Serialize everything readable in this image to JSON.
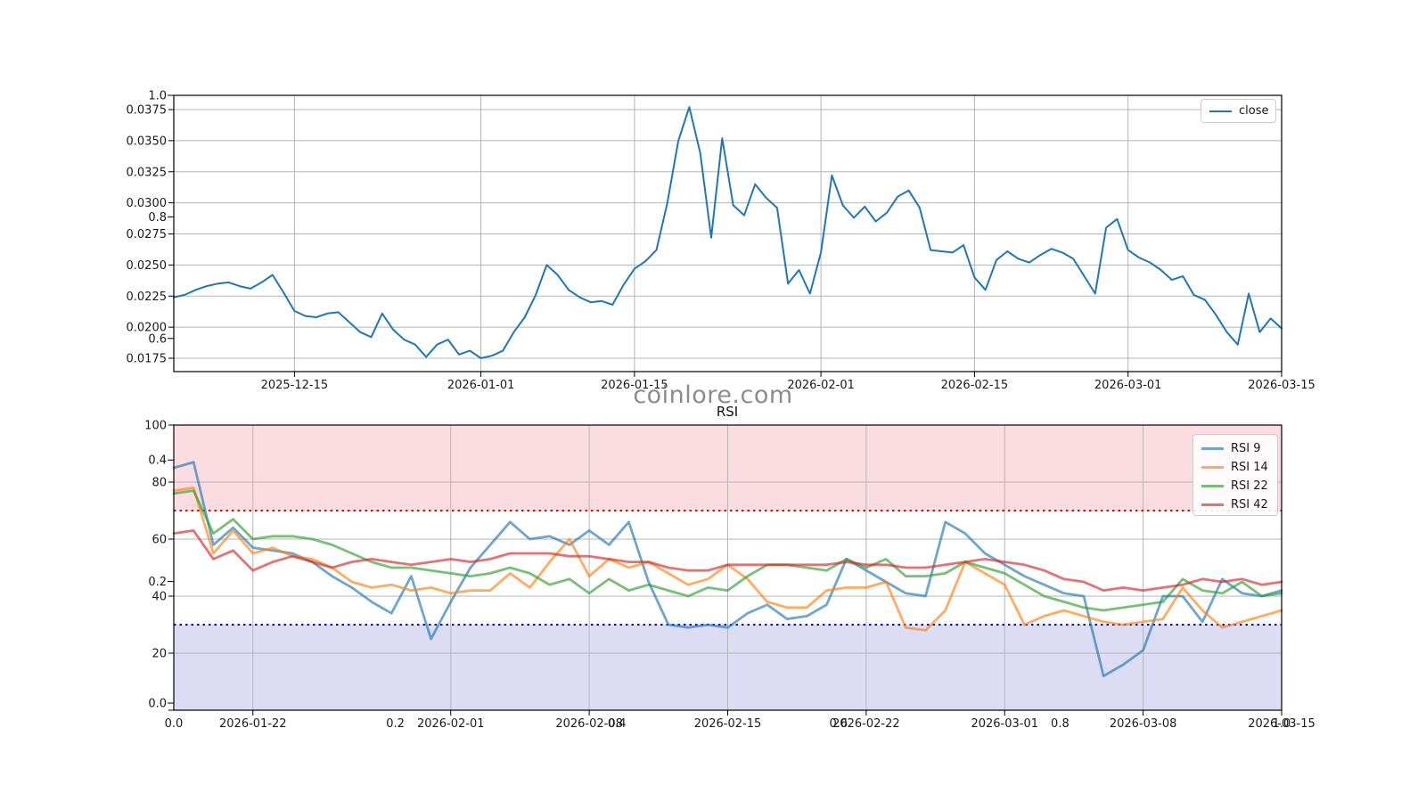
{
  "watermark": {
    "text": "coinlore.com"
  },
  "figure_axis": {
    "x_tick_labels": [
      "0.0",
      "0.2",
      "0.4",
      "0.6",
      "0.8",
      "1.0"
    ],
    "y_tick_labels": [
      "1.0",
      "0.8",
      "0.6",
      "0.4",
      "0.2",
      "0.0"
    ]
  },
  "colors": {
    "close_line": "#1f77b4",
    "rsi9": "rgba(31,119,180,0.65)",
    "rsi14": "rgba(255,127,14,0.65)",
    "rsi22": "rgba(44,160,44,0.65)",
    "rsi42": "rgba(214,39,40,0.65)",
    "overbought_band": "#fbdce1",
    "oversold_band": "#dcdcf5",
    "overbought_line": "#ee0000",
    "oversold_line": "#0000dd",
    "grid": "#b5b5b5",
    "spine": "#000000",
    "watermark": "#8c8c8c"
  },
  "chart_data": [
    {
      "type": "line",
      "name": "price",
      "title": "",
      "legend_entries": [
        "close"
      ],
      "x_start": "2025-12-04",
      "x_step_days": 1,
      "x_ticks": [
        {
          "label": "2025-12-15",
          "index": 11
        },
        {
          "label": "2026-01-01",
          "index": 28
        },
        {
          "label": "2026-01-15",
          "index": 42
        },
        {
          "label": "2026-02-01",
          "index": 59
        },
        {
          "label": "2026-02-15",
          "index": 73
        },
        {
          "label": "2026-03-01",
          "index": 87
        },
        {
          "label": "2026-03-15",
          "index": 101
        }
      ],
      "y_ticks": [
        0.0175,
        0.02,
        0.0225,
        0.025,
        0.0275,
        0.03,
        0.0325,
        0.035,
        0.0375
      ],
      "ylim": [
        0.01643,
        0.03865
      ],
      "grid": true,
      "legend_position": "upper right",
      "series": [
        {
          "name": "close",
          "color": "#1f77b4",
          "values": [
            0.0224,
            0.0226,
            0.023,
            0.0233,
            0.0235,
            0.0236,
            0.0233,
            0.0231,
            0.0236,
            0.0242,
            0.0228,
            0.0213,
            0.0209,
            0.0208,
            0.0211,
            0.0212,
            0.0204,
            0.0196,
            0.0192,
            0.0211,
            0.0198,
            0.019,
            0.0186,
            0.0176,
            0.0186,
            0.019,
            0.0178,
            0.0181,
            0.0175,
            0.0177,
            0.0181,
            0.0196,
            0.0208,
            0.0226,
            0.025,
            0.0242,
            0.023,
            0.0224,
            0.022,
            0.0221,
            0.0218,
            0.0234,
            0.0247,
            0.0253,
            0.0262,
            0.03,
            0.035,
            0.0377,
            0.034,
            0.0272,
            0.0352,
            0.0298,
            0.029,
            0.0315,
            0.0304,
            0.0296,
            0.0235,
            0.0246,
            0.0227,
            0.026,
            0.0322,
            0.0298,
            0.0288,
            0.0297,
            0.0285,
            0.0292,
            0.0305,
            0.031,
            0.0296,
            0.0262,
            0.0261,
            0.026,
            0.0266,
            0.024,
            0.023,
            0.0254,
            0.0261,
            0.0255,
            0.0252,
            0.0258,
            0.0263,
            0.026,
            0.0255,
            0.0241,
            0.0227,
            0.028,
            0.0287,
            0.0262,
            0.0256,
            0.0252,
            0.0246,
            0.0238,
            0.0241,
            0.0226,
            0.0222,
            0.021,
            0.0196,
            0.0186,
            0.0227,
            0.0196,
            0.0207,
            0.0199
          ]
        }
      ]
    },
    {
      "type": "line",
      "name": "rsi",
      "title": "RSI",
      "legend_entries": [
        "RSI 9",
        "RSI 14",
        "RSI 22",
        "RSI 42"
      ],
      "x_start": "2026-01-18",
      "x_step_days": 1,
      "x_ticks": [
        {
          "label": "2026-01-22",
          "index": 4
        },
        {
          "label": "2026-02-01",
          "index": 14
        },
        {
          "label": "2026-02-08",
          "index": 21
        },
        {
          "label": "2026-02-15",
          "index": 28
        },
        {
          "label": "2026-02-22",
          "index": 35
        },
        {
          "label": "2026-03-01",
          "index": 42
        },
        {
          "label": "2026-03-08",
          "index": 49
        },
        {
          "label": "2026-03-15",
          "index": 56
        }
      ],
      "y_ticks": [
        0,
        20,
        40,
        60,
        80,
        100
      ],
      "ylim": [
        0,
        100
      ],
      "grid": true,
      "legend_position": "upper right",
      "overbought": {
        "threshold": 70,
        "band": [
          70,
          100
        ]
      },
      "oversold": {
        "threshold": 30,
        "band": [
          0,
          30
        ]
      },
      "series": [
        {
          "name": "RSI 9",
          "color": "rgba(31,119,180,0.65)",
          "values": [
            85,
            87,
            58,
            64,
            57,
            56,
            55,
            52,
            47,
            43,
            38,
            34,
            47,
            25,
            38,
            50,
            58,
            66,
            60,
            61,
            58,
            63,
            58,
            66,
            45,
            30,
            29,
            30,
            29,
            34,
            37,
            32,
            33,
            37,
            53,
            49,
            45,
            41,
            40,
            66,
            62,
            55,
            51,
            47,
            44,
            41,
            40,
            12,
            16,
            21,
            40,
            40,
            31,
            46,
            41,
            40,
            42
          ]
        },
        {
          "name": "RSI 14",
          "color": "rgba(255,127,14,0.65)",
          "values": [
            77,
            78,
            55,
            63,
            55,
            57,
            54,
            53,
            50,
            45,
            43,
            44,
            42,
            43,
            41,
            42,
            42,
            48,
            43,
            52,
            60,
            47,
            53,
            50,
            52,
            48,
            44,
            46,
            51,
            46,
            38,
            36,
            36,
            42,
            43,
            43,
            45,
            29,
            28,
            35,
            52,
            48,
            44,
            30,
            33,
            35,
            33,
            31,
            30,
            31,
            32,
            43,
            35,
            29,
            31,
            33,
            35
          ]
        },
        {
          "name": "RSI 22",
          "color": "rgba(44,160,44,0.65)",
          "values": [
            76,
            77,
            62,
            67,
            60,
            61,
            61,
            60,
            58,
            55,
            52,
            50,
            50,
            49,
            48,
            47,
            48,
            50,
            48,
            44,
            46,
            41,
            46,
            42,
            44,
            42,
            40,
            43,
            42,
            47,
            51,
            51,
            50,
            49,
            53,
            50,
            53,
            47,
            47,
            48,
            52,
            50,
            48,
            44,
            40,
            38,
            36,
            35,
            36,
            37,
            38,
            46,
            42,
            41,
            45,
            40,
            41
          ]
        },
        {
          "name": "RSI 42",
          "color": "rgba(214,39,40,0.65)",
          "values": [
            62,
            63,
            53,
            56,
            49,
            52,
            54,
            52,
            50,
            52,
            53,
            52,
            51,
            52,
            53,
            52,
            53,
            55,
            55,
            55,
            54,
            54,
            53,
            52,
            52,
            50,
            49,
            49,
            51,
            51,
            51,
            51,
            51,
            51,
            52,
            51,
            51,
            50,
            50,
            51,
            52,
            53,
            52,
            51,
            49,
            46,
            45,
            42,
            43,
            42,
            43,
            44,
            46,
            45,
            46,
            44,
            45
          ]
        }
      ]
    }
  ]
}
